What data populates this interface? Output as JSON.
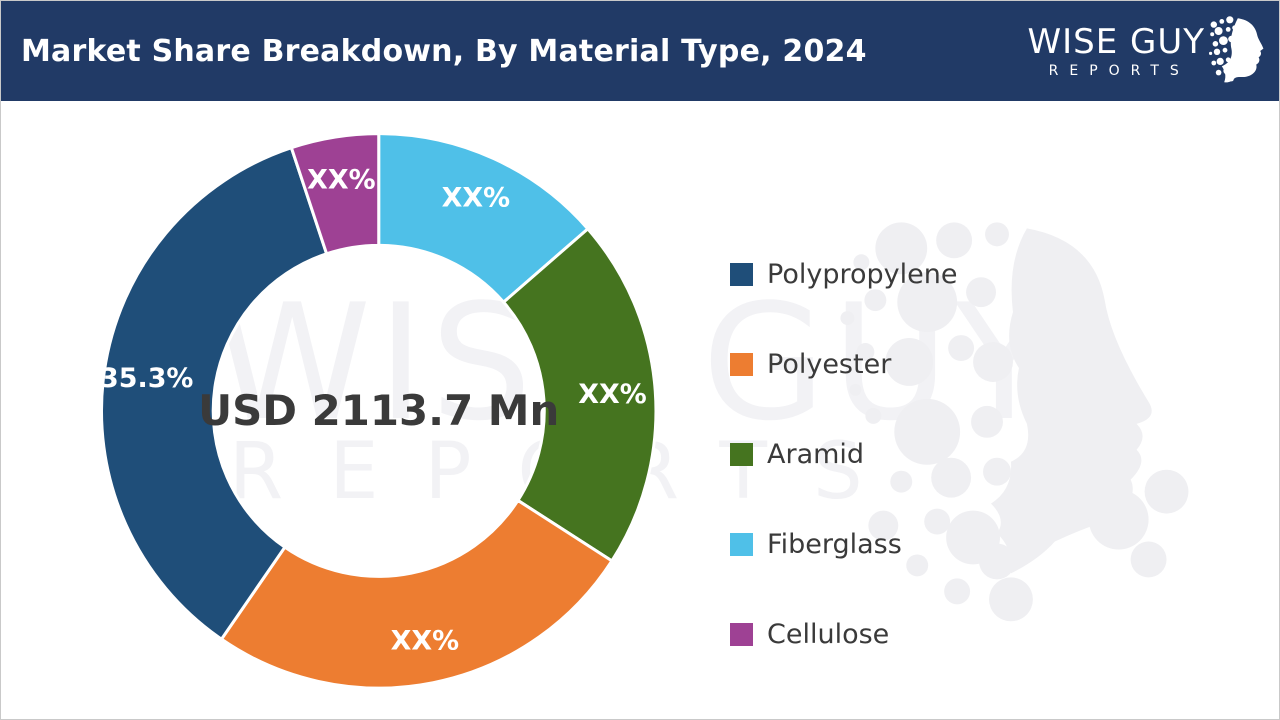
{
  "header": {
    "title": "Market Share Breakdown, By Material Type, 2024",
    "logo_line1": "WISE GUY",
    "logo_line2": "REPORTS"
  },
  "watermark": {
    "line1": "WISE GUY",
    "line2": "REPORTS"
  },
  "chart_data": {
    "type": "pie",
    "subtype": "donut",
    "title": "Market Share Breakdown, By Material Type, 2024",
    "center_label": "USD 2113.7 Mn",
    "start_angle_deg": 0,
    "direction": "clockwise",
    "legend_position": "right",
    "segments": [
      {
        "label": "Fiberglass",
        "display": "XX%",
        "value_pct_est": 13.6,
        "color": "#4fc0e8"
      },
      {
        "label": "Aramid",
        "display": "XX%",
        "value_pct_est": 20.5,
        "color": "#45741f"
      },
      {
        "label": "Polyester",
        "display": "XX%",
        "value_pct_est": 25.5,
        "color": "#ed7d31"
      },
      {
        "label": "Polypropylene",
        "display": "35.3%",
        "value_pct_est": 35.3,
        "color": "#1f4e79"
      },
      {
        "label": "Cellulose",
        "display": "XX%",
        "value_pct_est": 5.1,
        "color": "#9e4194"
      }
    ],
    "legend_order": [
      "Polypropylene",
      "Polyester",
      "Aramid",
      "Fiberglass",
      "Cellulose"
    ]
  }
}
